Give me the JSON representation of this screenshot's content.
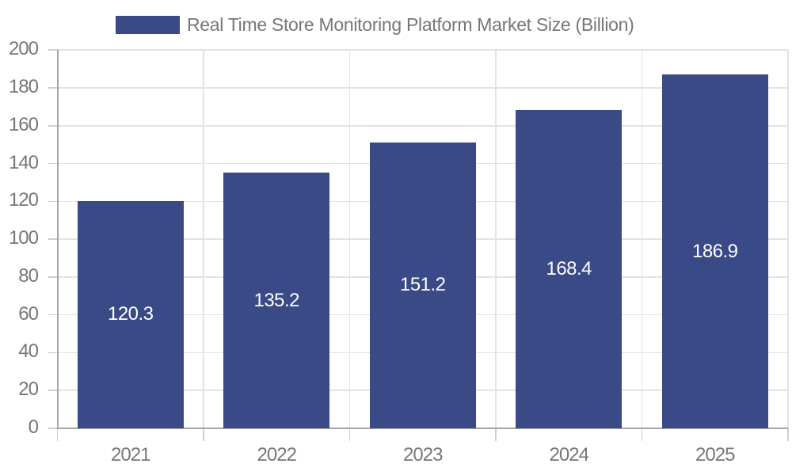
{
  "legend": {
    "label": "Real Time Store Monitoring Platform Market Size (Billion)"
  },
  "colors": {
    "bar": "#394a86",
    "grid": "#e3e3e3",
    "axis": "#a6a6a6",
    "tick": "#cfcfcf",
    "tick_label": "#76777a",
    "value_label": "#ffffff",
    "background": "#ffffff"
  },
  "chart_data": {
    "type": "bar",
    "title": "Real Time Store Monitoring Platform Market Size (Billion)",
    "categories": [
      "2021",
      "2022",
      "2023",
      "2024",
      "2025"
    ],
    "values": [
      120.3,
      135.2,
      151.2,
      168.4,
      186.9
    ],
    "value_labels": [
      "120.3",
      "135.2",
      "151.2",
      "168.4",
      "186.9"
    ],
    "xlabel": "",
    "ylabel": "",
    "ylim": [
      0,
      200
    ],
    "ytick_step": 20,
    "yticks": [
      "0",
      "20",
      "40",
      "60",
      "80",
      "100",
      "120",
      "140",
      "160",
      "180",
      "200"
    ],
    "grid": true,
    "legend_position": "top-center",
    "value_label_position": "center-of-bar"
  }
}
